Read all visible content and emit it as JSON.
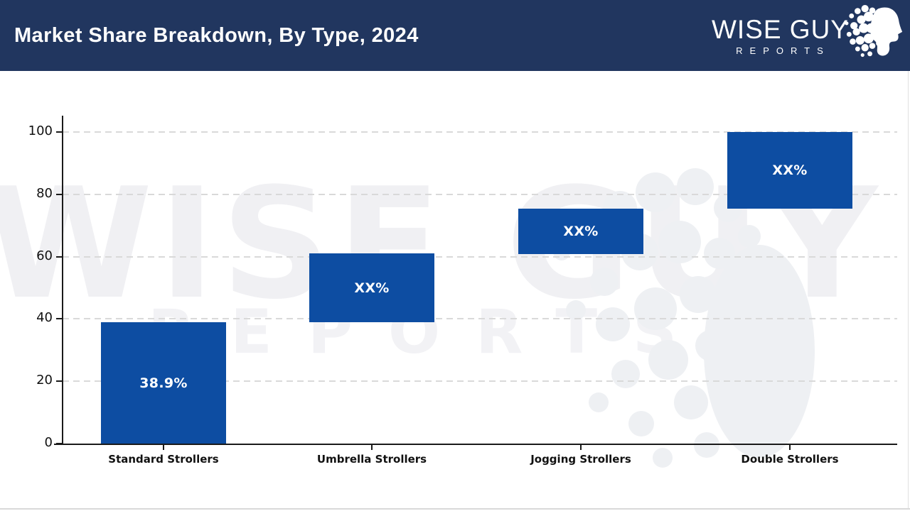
{
  "header": {
    "title": "Market Share Breakdown, By Type, 2024",
    "logo": {
      "line1": "WISE GUY",
      "line2": "REPORTS"
    }
  },
  "watermark": {
    "line1": "WISE GUY",
    "line2": "REPORTS"
  },
  "colors": {
    "header_bg": "#21365f",
    "bar": "#0d4da2",
    "axis": "#1a1a1a",
    "grid": "#d9d9d9",
    "tick_text": "#111111",
    "bar_label": "#ffffff",
    "watermark": "#f0f0f3"
  },
  "chart_data": {
    "type": "bar",
    "subtype": "floating-waterfall",
    "title": "Market Share Breakdown, By Type, 2024",
    "xlabel": "",
    "ylabel": "",
    "ylim": [
      0,
      105
    ],
    "y_ticks": [
      0,
      20,
      40,
      60,
      80,
      100
    ],
    "grid": "horizontal-dashed",
    "legend": "none",
    "categories": [
      "Standard Strollers",
      "Umbrella Strollers",
      "Jogging Strollers",
      "Double Strollers"
    ],
    "segments": [
      {
        "category": "Standard Strollers",
        "start": 0,
        "end": 38.9,
        "label": "38.9%"
      },
      {
        "category": "Umbrella Strollers",
        "start": 38.9,
        "end": 61.0,
        "label": "XX%"
      },
      {
        "category": "Jogging Strollers",
        "start": 61.0,
        "end": 75.5,
        "label": "XX%"
      },
      {
        "category": "Double Strollers",
        "start": 75.5,
        "end": 100,
        "label": "XX%"
      }
    ]
  }
}
